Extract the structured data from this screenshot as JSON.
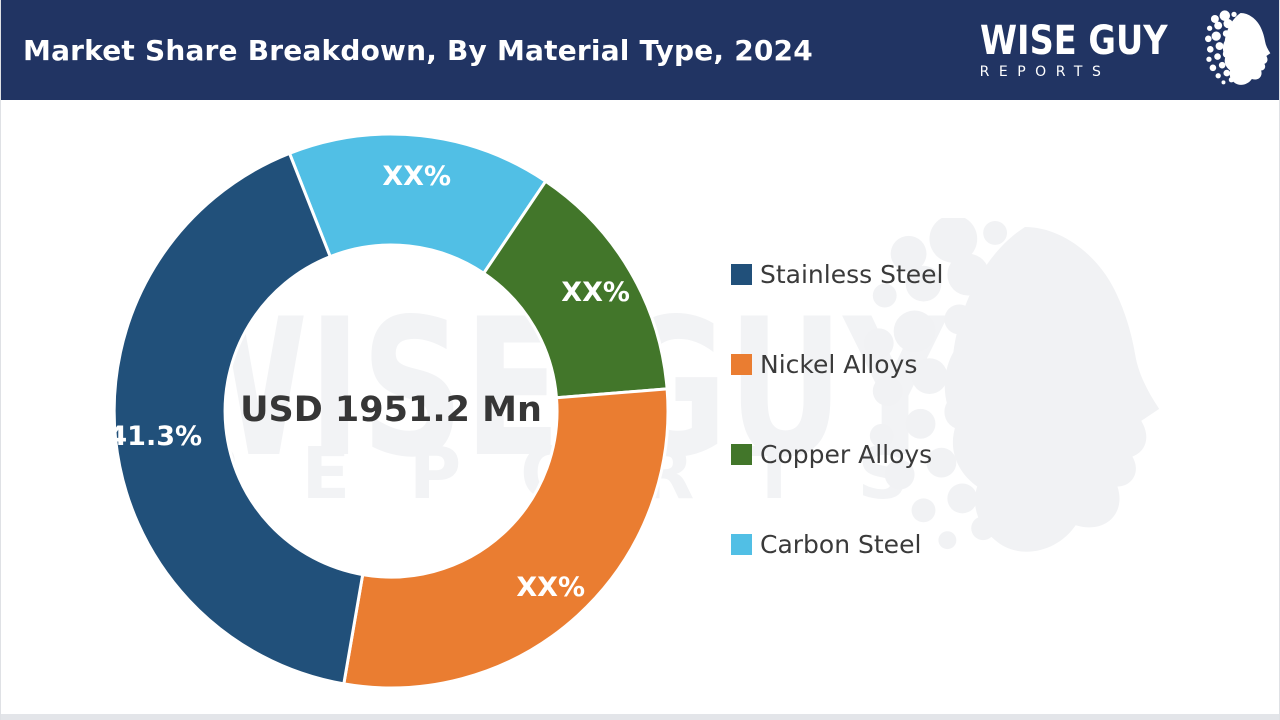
{
  "header": {
    "title": "Market Share Breakdown, By Material Type, 2024",
    "bg_color": "#213463",
    "logo": {
      "line1": "WISE GUY",
      "line2": "REPORTS"
    }
  },
  "watermark": {
    "line1": "WISE GUY",
    "line2": "REPORTS"
  },
  "chart_data": {
    "type": "pie",
    "subtype": "donut",
    "title": "Market Share Breakdown, By Material Type, 2024",
    "center_label": "USD 1951.2 Mn",
    "start_angle_deg": -21.5,
    "inner_radius_ratio": 0.6,
    "legend_position": "right",
    "segments": [
      {
        "name": "Carbon Steel",
        "display_label": "XX%",
        "percent_est": 15.4,
        "color": "#51bfe5"
      },
      {
        "name": "Copper Alloys",
        "display_label": "XX%",
        "percent_est": 14.3,
        "color": "#42762a"
      },
      {
        "name": "Nickel Alloys",
        "display_label": "XX%",
        "percent_est": 29.0,
        "color": "#ea7d31"
      },
      {
        "name": "Stainless Steel",
        "display_label": "41.3%",
        "percent_est": 41.3,
        "color": "#21507a"
      }
    ]
  },
  "legend": {
    "items": [
      {
        "label": "Stainless Steel",
        "color": "#21507a"
      },
      {
        "label": "Nickel Alloys",
        "color": "#ea7d31"
      },
      {
        "label": "Copper Alloys",
        "color": "#42762a"
      },
      {
        "label": "Carbon Steel",
        "color": "#51bfe5"
      }
    ]
  }
}
